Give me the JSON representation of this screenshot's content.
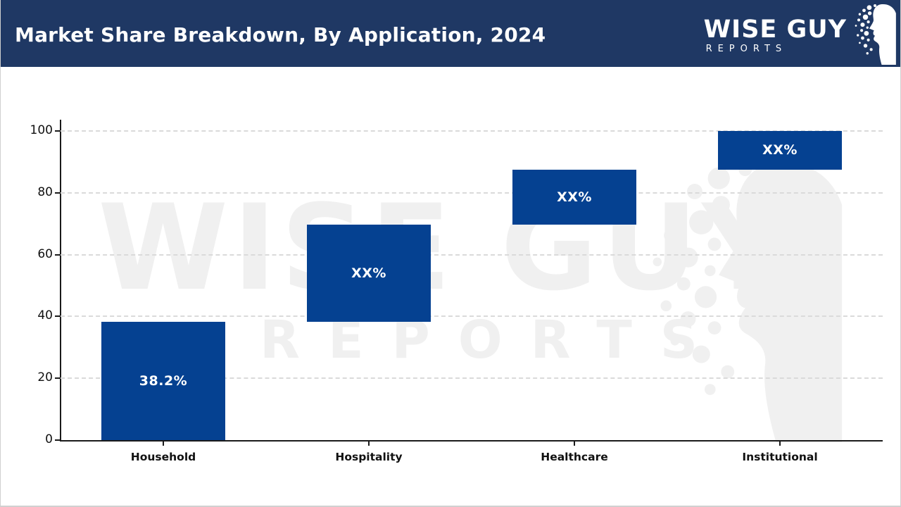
{
  "header": {
    "title": "Market Share Breakdown, By Application, 2024",
    "logo": {
      "name": "WISE GUY",
      "sub": "REPORTS",
      "icon": "dotted-face-profile"
    }
  },
  "watermark": {
    "line1": "WISE GUY",
    "line2": "REPORTS",
    "icon": "dotted-face-profile"
  },
  "chart_data": {
    "type": "bar",
    "variant": "waterfall-segmented",
    "title": "Market Share Breakdown, By Application, 2024",
    "categories": [
      "Household",
      "Hospitality",
      "Healthcare",
      "Institutional"
    ],
    "series": [
      {
        "name": "Market Share",
        "segments": [
          {
            "category": "Household",
            "start": 0,
            "end": 38.2,
            "label": "38.2%"
          },
          {
            "category": "Hospitality",
            "start": 38.2,
            "end": 69.8,
            "label": "XX%"
          },
          {
            "category": "Healthcare",
            "start": 69.8,
            "end": 87.5,
            "label": "XX%"
          },
          {
            "category": "Institutional",
            "start": 87.5,
            "end": 100,
            "label": "XX%"
          }
        ]
      }
    ],
    "xlabel": "",
    "ylabel": "",
    "ylim": [
      0,
      100
    ],
    "yticks": [
      0,
      20,
      40,
      60,
      80,
      100
    ],
    "grid": "horizontal-dashed",
    "legend": "none",
    "colors": {
      "bar": "#054191",
      "bar_label": "#ffffff",
      "grid": "#dadada",
      "axis": "#1a1a1a",
      "tick_text": "#111111",
      "header_bg": "#1f3864",
      "watermark": "#f0f0f0"
    }
  }
}
